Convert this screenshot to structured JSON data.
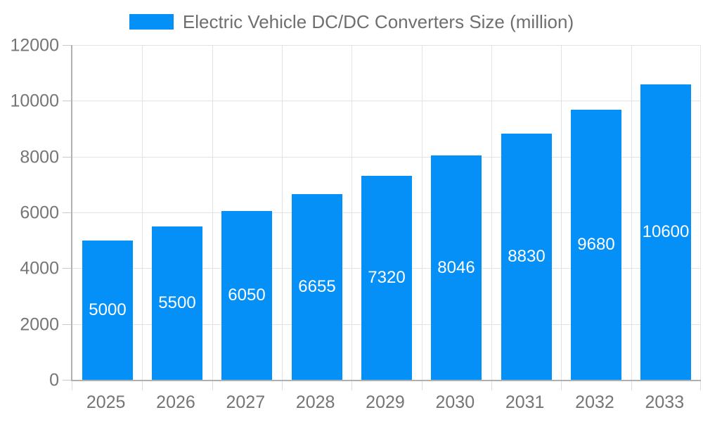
{
  "chart": {
    "legend_label": "Electric Vehicle DC/DC Converters Size (million)",
    "colors": {
      "bar": "#0590f8",
      "gridline": "#e3e3e3",
      "axis_line": "#b0b0b0",
      "axis_text": "#757575",
      "legend_text": "#6f6f6f",
      "bar_label_text": "#ffffff",
      "background": "#ffffff"
    }
  },
  "chart_data": {
    "type": "bar",
    "title": "Electric Vehicle DC/DC Converters Size (million)",
    "categories": [
      "2025",
      "2026",
      "2027",
      "2028",
      "2029",
      "2030",
      "2031",
      "2032",
      "2033"
    ],
    "values": [
      5000,
      5500,
      6050,
      6655,
      7320,
      8046,
      8830,
      9680,
      10600
    ],
    "series_name": "Electric Vehicle DC/DC Converters Size (million)",
    "xlabel": "",
    "ylabel": "",
    "ylim": [
      0,
      12000
    ],
    "yticks": [
      0,
      2000,
      4000,
      6000,
      8000,
      10000,
      12000
    ],
    "grid": true,
    "legend_position": "top",
    "bar_labels_visible": true
  }
}
